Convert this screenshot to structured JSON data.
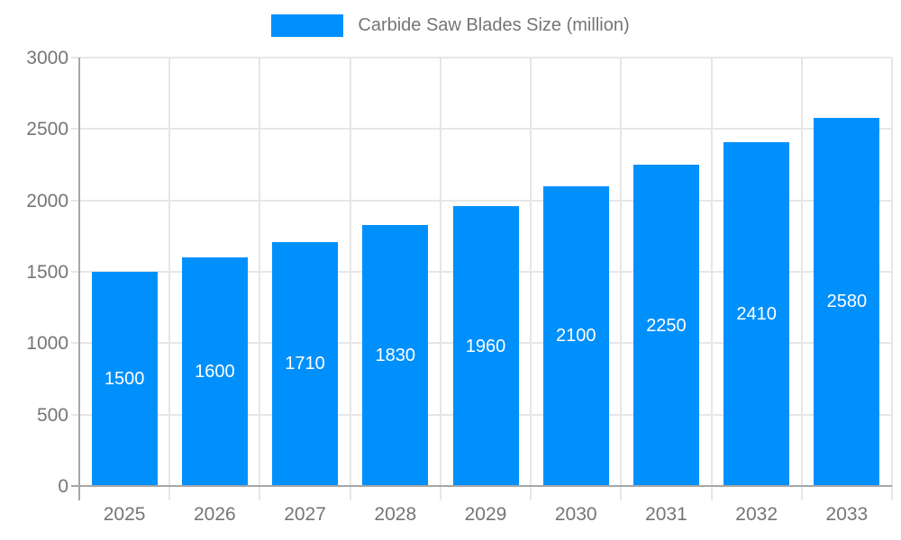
{
  "legend": {
    "label": "Carbide Saw Blades Size (million)"
  },
  "chart_data": {
    "type": "bar",
    "title": "Carbide Saw Blades Size (million)",
    "categories": [
      "2025",
      "2026",
      "2027",
      "2028",
      "2029",
      "2030",
      "2031",
      "2032",
      "2033"
    ],
    "values": [
      1500,
      1600,
      1710,
      1830,
      1960,
      2100,
      2250,
      2410,
      2580
    ],
    "series_name": "Carbide Saw Blades Size (million)",
    "xlabel": "",
    "ylabel": "",
    "ylim": [
      0,
      3000
    ],
    "yticks": [
      0,
      500,
      1000,
      1500,
      2000,
      2500,
      3000
    ],
    "grid": true,
    "legend_position": "top-center",
    "value_labels": "inside-center",
    "colors": {
      "bar": "#0090fc",
      "bar_label": "#ffffff",
      "axis": "#a6a6a6",
      "grid": "#e6e6e6",
      "tick_text": "#757575"
    }
  }
}
